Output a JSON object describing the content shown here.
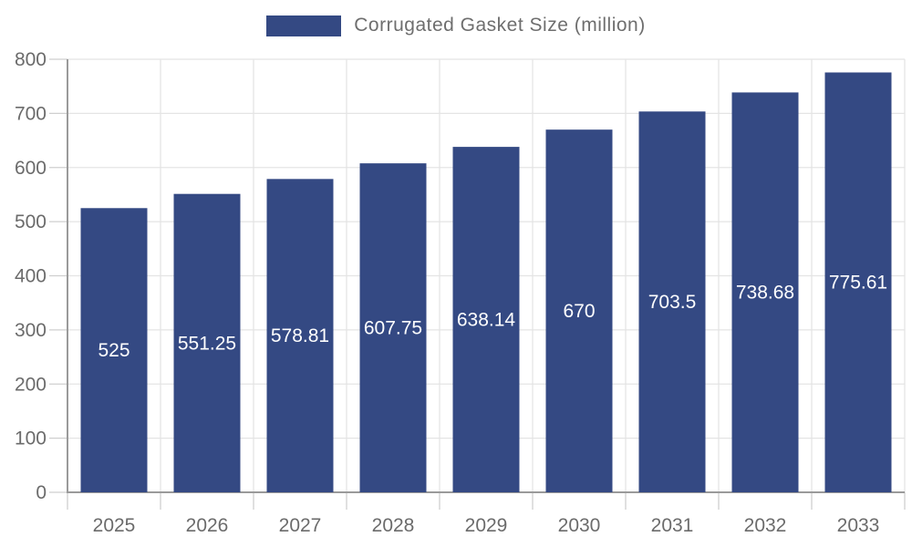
{
  "chart_data": {
    "type": "bar",
    "title": "Corrugated Gasket Size (million)",
    "legend_label": "Corrugated Gasket Size (million)",
    "legend_position": "top-center",
    "categories": [
      "2025",
      "2026",
      "2027",
      "2028",
      "2029",
      "2030",
      "2031",
      "2032",
      "2033"
    ],
    "series": [
      {
        "name": "Corrugated Gasket Size (million)",
        "values": [
          525,
          551.25,
          578.81,
          607.75,
          638.14,
          670,
          703.5,
          738.68,
          775.61
        ],
        "value_labels": [
          "525",
          "551.25",
          "578.81",
          "607.75",
          "638.14",
          "670",
          "703.5",
          "738.68",
          "775.61"
        ]
      }
    ],
    "xlabel": "",
    "ylabel": "",
    "ylim": [
      0,
      800
    ],
    "yticks": [
      0,
      100,
      200,
      300,
      400,
      500,
      600,
      700,
      800
    ],
    "grid": true,
    "colors": {
      "bar": "#344983",
      "axis": "#9a9a9a",
      "grid": "#e4e4e4",
      "tick": "#cfcfcf",
      "tick_text": "#6b6b6b",
      "legend_text": "#6e6e6e",
      "value_text": "#ffffff",
      "background": "#ffffff"
    }
  }
}
